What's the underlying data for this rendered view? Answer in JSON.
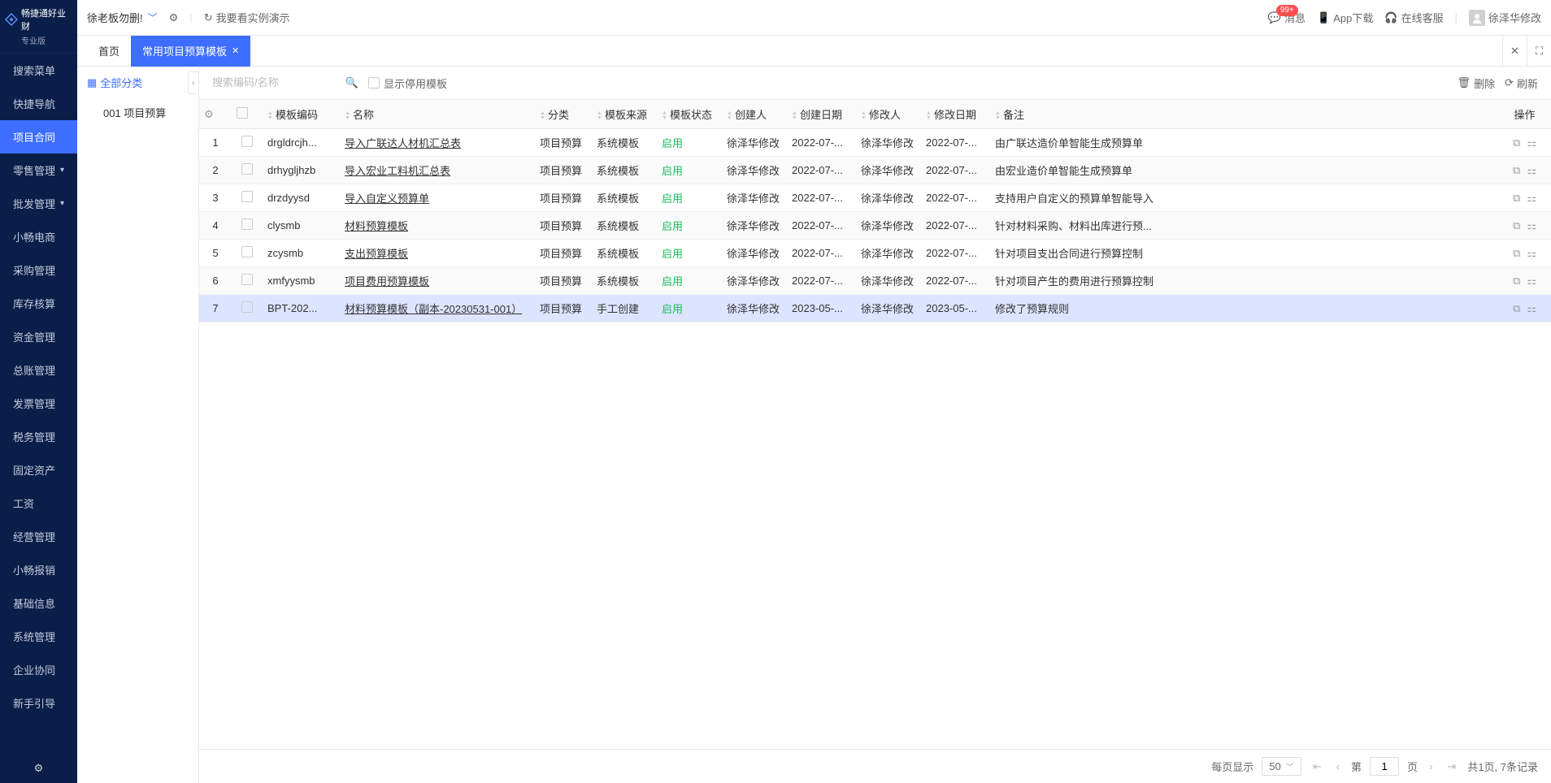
{
  "brand": {
    "name": "畅捷通好业财",
    "edition": "专业版"
  },
  "topbar": {
    "company": "徐老板勿删!",
    "demo_link": "我要看实例演示",
    "messages": {
      "label": "消息",
      "badge": "99+"
    },
    "app_download": "App下载",
    "online_service": "在线客服",
    "user_name": "徐泽华修改"
  },
  "sidebar": {
    "items": [
      {
        "label": "搜索菜单",
        "caret": false
      },
      {
        "label": "快捷导航",
        "caret": false
      },
      {
        "label": "项目合同",
        "caret": false,
        "active": true
      },
      {
        "label": "零售管理",
        "caret": true
      },
      {
        "label": "批发管理",
        "caret": true
      },
      {
        "label": "小畅电商",
        "caret": false
      },
      {
        "label": "采购管理",
        "caret": false
      },
      {
        "label": "库存核算",
        "caret": false
      },
      {
        "label": "资金管理",
        "caret": false
      },
      {
        "label": "总账管理",
        "caret": false
      },
      {
        "label": "发票管理",
        "caret": false
      },
      {
        "label": "税务管理",
        "caret": false
      },
      {
        "label": "固定资产",
        "caret": false
      },
      {
        "label": "工资",
        "caret": false
      },
      {
        "label": "经营管理",
        "caret": false
      },
      {
        "label": "小畅报销",
        "caret": false
      },
      {
        "label": "基础信息",
        "caret": false
      },
      {
        "label": "系统管理",
        "caret": false
      },
      {
        "label": "企业协同",
        "caret": false
      },
      {
        "label": "新手引导",
        "caret": false
      }
    ]
  },
  "tabs": {
    "home": "首页",
    "active": "常用项目预算模板"
  },
  "tree": {
    "root": "全部分类",
    "child": "001 项目预算"
  },
  "toolbar": {
    "search_placeholder": "搜索编码/名称",
    "show_disabled": "显示停用模板",
    "delete": "删除",
    "refresh": "刷新"
  },
  "columns": {
    "code": "模板编码",
    "name": "名称",
    "category": "分类",
    "source": "模板来源",
    "status": "模板状态",
    "creator": "创建人",
    "create_date": "创建日期",
    "modifier": "修改人",
    "modify_date": "修改日期",
    "remark": "备注",
    "ops": "操作"
  },
  "rows": [
    {
      "idx": "1",
      "code": "drgldrcjh...",
      "name": "导入广联达人材机汇总表",
      "category": "项目预算",
      "source": "系统模板",
      "status": "启用",
      "creator": "徐泽华修改",
      "create_date": "2022-07-...",
      "modifier": "徐泽华修改",
      "modify_date": "2022-07-...",
      "remark": "由广联达造价单智能生成预算单"
    },
    {
      "idx": "2",
      "code": "drhygljhzb",
      "name": "导入宏业工料机汇总表",
      "category": "项目预算",
      "source": "系统模板",
      "status": "启用",
      "creator": "徐泽华修改",
      "create_date": "2022-07-...",
      "modifier": "徐泽华修改",
      "modify_date": "2022-07-...",
      "remark": "由宏业造价单智能生成预算单"
    },
    {
      "idx": "3",
      "code": "drzdyysd",
      "name": "导入自定义预算单",
      "category": "项目预算",
      "source": "系统模板",
      "status": "启用",
      "creator": "徐泽华修改",
      "create_date": "2022-07-...",
      "modifier": "徐泽华修改",
      "modify_date": "2022-07-...",
      "remark": "支持用户自定义的预算单智能导入"
    },
    {
      "idx": "4",
      "code": "clysmb",
      "name": "材料预算模板",
      "category": "项目预算",
      "source": "系统模板",
      "status": "启用",
      "creator": "徐泽华修改",
      "create_date": "2022-07-...",
      "modifier": "徐泽华修改",
      "modify_date": "2022-07-...",
      "remark": "针对材料采购、材料出库进行预..."
    },
    {
      "idx": "5",
      "code": "zcysmb",
      "name": "支出预算模板",
      "category": "项目预算",
      "source": "系统模板",
      "status": "启用",
      "creator": "徐泽华修改",
      "create_date": "2022-07-...",
      "modifier": "徐泽华修改",
      "modify_date": "2022-07-...",
      "remark": "针对项目支出合同进行预算控制"
    },
    {
      "idx": "6",
      "code": "xmfyysmb",
      "name": "项目费用预算模板",
      "category": "项目预算",
      "source": "系统模板",
      "status": "启用",
      "creator": "徐泽华修改",
      "create_date": "2022-07-...",
      "modifier": "徐泽华修改",
      "modify_date": "2022-07-...",
      "remark": "针对项目产生的费用进行预算控制"
    },
    {
      "idx": "7",
      "code": "BPT-202...",
      "name": "材料预算模板（副本-20230531-001）",
      "category": "项目预算",
      "source": "手工创建",
      "status": "启用",
      "creator": "徐泽华修改",
      "create_date": "2023-05-...",
      "modifier": "徐泽华修改",
      "modify_date": "2023-05-...",
      "remark": "修改了预算规则",
      "highlighted": true
    }
  ],
  "pager": {
    "per_page_label": "每页显示",
    "per_page_value": "50",
    "page_prefix": "第",
    "page_value": "1",
    "page_suffix": "页",
    "total": "共1页, 7条记录"
  },
  "colors": {
    "sidebar_bg": "#0a1e4a",
    "primary": "#3d6eff",
    "status_green": "#1abc5b",
    "badge_red": "#ff4d4f",
    "row_highlight": "#dde4ff"
  }
}
